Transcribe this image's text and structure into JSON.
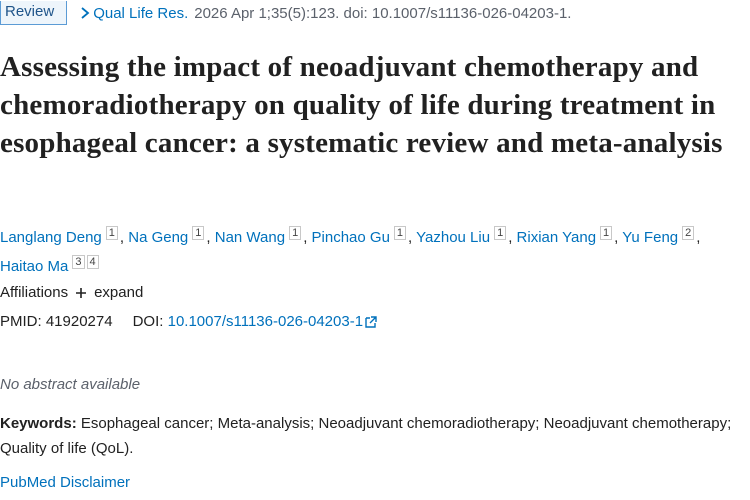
{
  "header": {
    "badge": "Review",
    "journal": "Qual Life Res.",
    "citation": "2026 Apr 1;35(5):123. doi: 10.1007/s11136-026-04203-1."
  },
  "title": "Assessing the impact of neoadjuvant chemotherapy and chemoradiotherapy on quality of life during treatment in esophageal cancer: a systematic review and meta-analysis",
  "authors": {
    "separator": ",",
    "list": [
      {
        "name": "Langlang Deng",
        "affiliations": [
          "1"
        ]
      },
      {
        "name": "Na Geng",
        "affiliations": [
          "1"
        ]
      },
      {
        "name": "Nan Wang",
        "affiliations": [
          "1"
        ]
      },
      {
        "name": "Pinchao Gu",
        "affiliations": [
          "1"
        ]
      },
      {
        "name": "Yazhou Liu",
        "affiliations": [
          "1"
        ]
      },
      {
        "name": "Rixian Yang",
        "affiliations": [
          "1"
        ]
      },
      {
        "name": "Yu Feng",
        "affiliations": [
          "2"
        ]
      },
      {
        "name": "Haitao Ma",
        "affiliations": [
          "3",
          "4"
        ]
      }
    ]
  },
  "affiliations": {
    "label": "Affiliations",
    "expand": "expand"
  },
  "identifiers": {
    "pmid_label": "PMID:",
    "pmid": "41920274",
    "doi_label": "DOI:",
    "doi": "10.1007/s11136-026-04203-1"
  },
  "abstract": "No abstract available",
  "keywords": {
    "label": "Keywords:",
    "text": "Esophageal cancer; Meta-analysis; Neoadjuvant chemoradiotherapy; Neoadjuvant chemotherapy; Quality of life (QoL)."
  },
  "disclaimer": "PubMed Disclaimer"
}
